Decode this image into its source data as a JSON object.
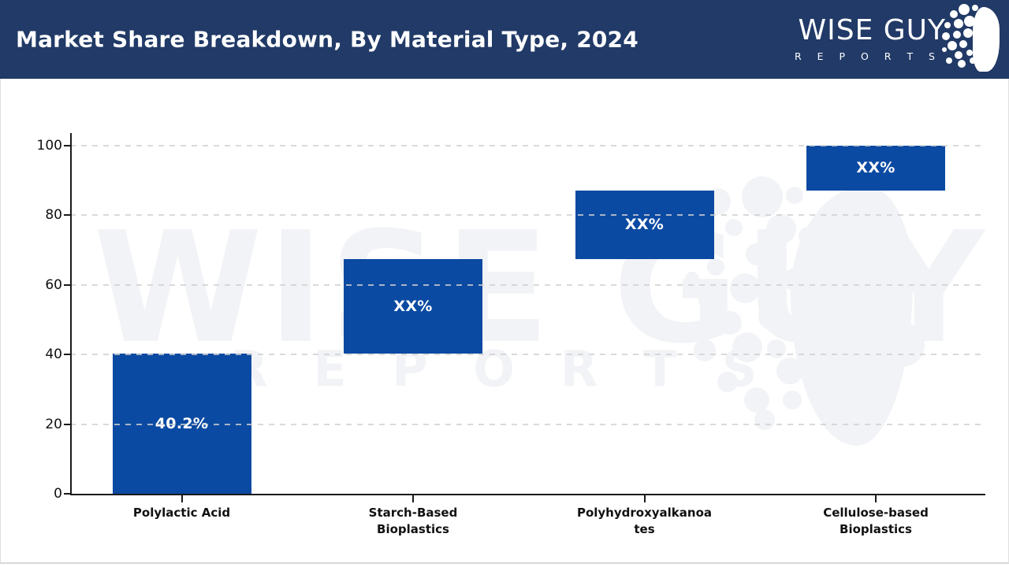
{
  "header": {
    "title": "Market Share Breakdown, By Material Type, 2024",
    "logo": {
      "name": "WISE GUY",
      "tagline": "R E P O R T S"
    }
  },
  "watermark": {
    "text": "WISE GUY",
    "tagline": "R E P O R T S"
  },
  "chart_data": {
    "type": "bar",
    "subtype": "waterfall",
    "title": "Market Share Breakdown, By Material Type, 2024",
    "xlabel": "",
    "ylabel": "",
    "ylim": [
      0,
      100
    ],
    "yticks": [
      0,
      20,
      40,
      60,
      80,
      100
    ],
    "grid": {
      "axis": "y",
      "style": "dashed",
      "color": "#d9d9d9"
    },
    "legend": false,
    "bar_color": "#0B4AA2",
    "categories": [
      "Polylactic Acid",
      "Starch-Based Bioplastics",
      "Polyhydroxyalkanoates",
      "Cellulose-based Bioplastics"
    ],
    "category_label_lines": [
      [
        "Polylactic Acid"
      ],
      [
        "Starch-Based",
        "Bioplastics"
      ],
      [
        "Polyhydroxyalkanoa",
        "tes"
      ],
      [
        "Cellulose-based",
        "Bioplastics"
      ]
    ],
    "segments": [
      {
        "category": "Polylactic Acid",
        "start": 0,
        "end": 40.2,
        "label": "40.2%"
      },
      {
        "category": "Starch-Based Bioplastics",
        "start": 40.2,
        "end": 67.4,
        "label": "XX%"
      },
      {
        "category": "Polyhydroxyalkanoates",
        "start": 67.4,
        "end": 87.2,
        "label": "XX%"
      },
      {
        "category": "Cellulose-based Bioplastics",
        "start": 87.2,
        "end": 100,
        "label": "XX%"
      }
    ]
  }
}
